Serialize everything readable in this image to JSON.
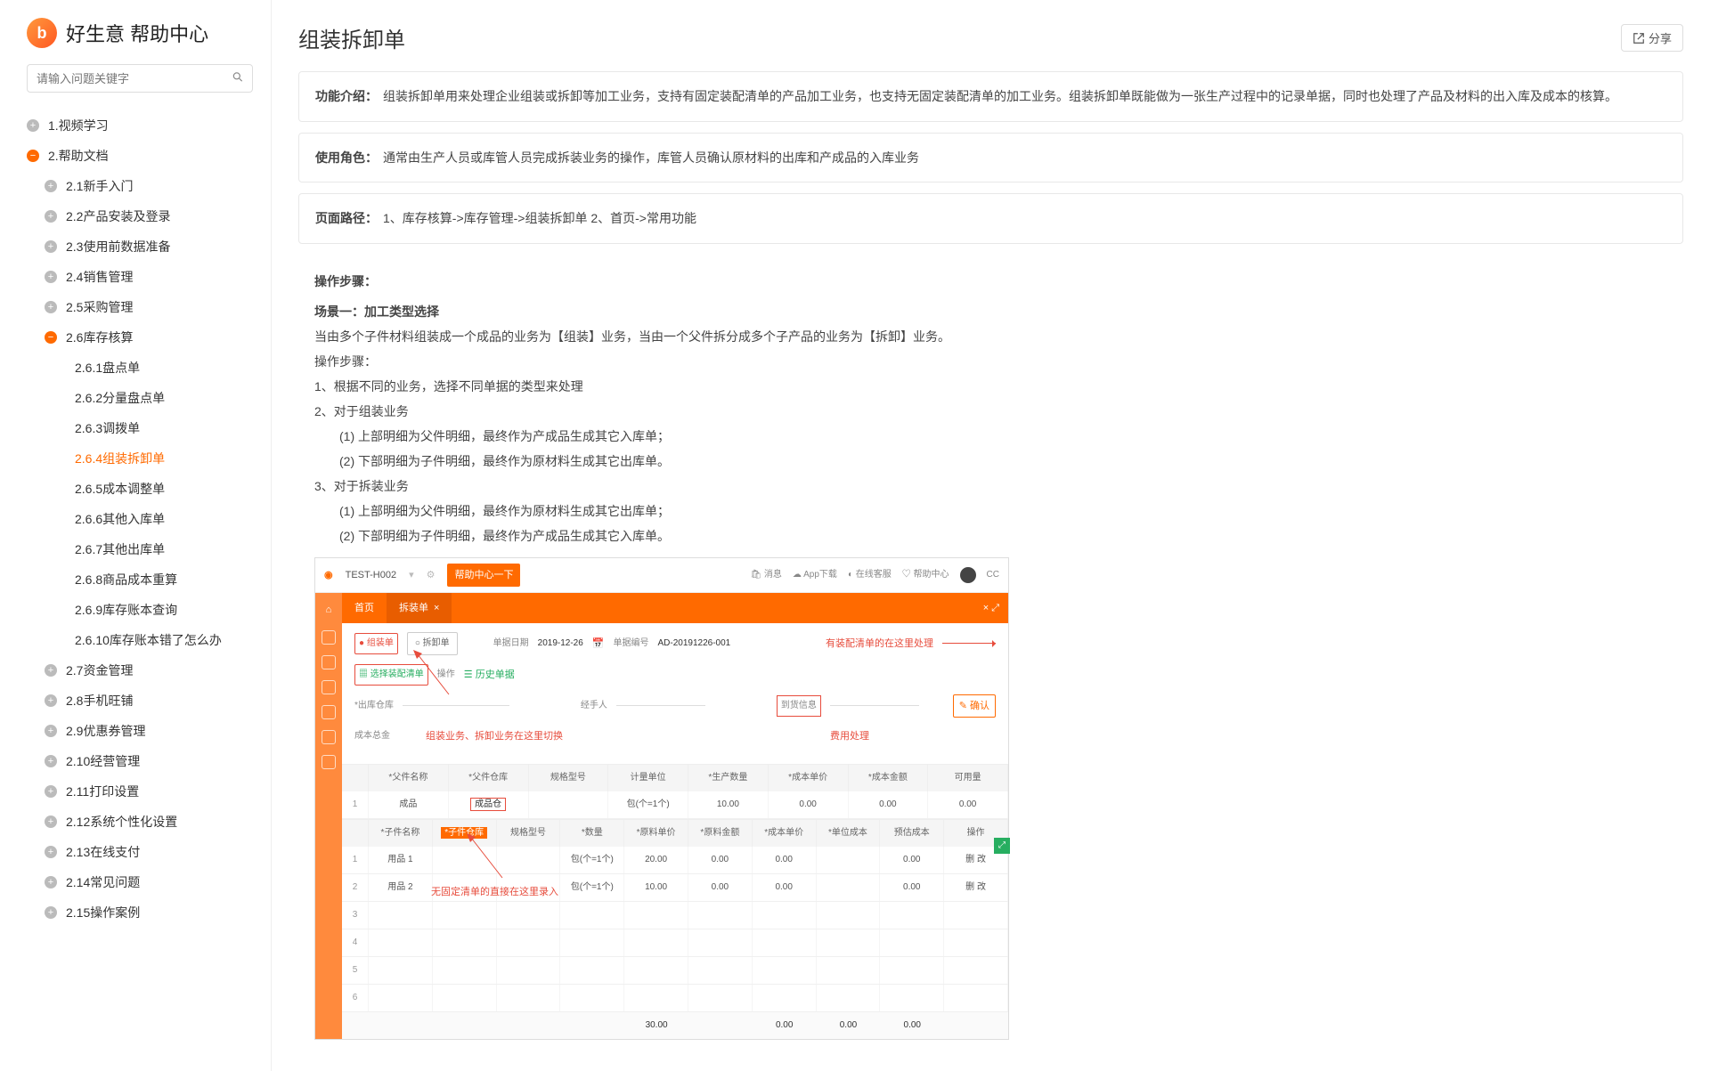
{
  "logo_text": "好生意 帮助中心",
  "logo_glyph": "b",
  "search": {
    "placeholder": "请输入问题关键字"
  },
  "share_label": "分享",
  "nav": [
    {
      "label": "1.视频学习",
      "expanded": false,
      "level": 0
    },
    {
      "label": "2.帮助文档",
      "expanded": true,
      "level": 0
    },
    {
      "label": "2.1新手入门",
      "expanded": false,
      "level": 1
    },
    {
      "label": "2.2产品安装及登录",
      "expanded": false,
      "level": 1
    },
    {
      "label": "2.3使用前数据准备",
      "expanded": false,
      "level": 1
    },
    {
      "label": "2.4销售管理",
      "expanded": false,
      "level": 1
    },
    {
      "label": "2.5采购管理",
      "expanded": false,
      "level": 1
    },
    {
      "label": "2.6库存核算",
      "expanded": true,
      "level": 1
    },
    {
      "label": "2.6.1盘点单",
      "level": 2
    },
    {
      "label": "2.6.2分量盘点单",
      "level": 2
    },
    {
      "label": "2.6.3调拨单",
      "level": 2
    },
    {
      "label": "2.6.4组装拆卸单",
      "level": 2,
      "active": true
    },
    {
      "label": "2.6.5成本调整单",
      "level": 2
    },
    {
      "label": "2.6.6其他入库单",
      "level": 2
    },
    {
      "label": "2.6.7其他出库单",
      "level": 2
    },
    {
      "label": "2.6.8商品成本重算",
      "level": 2
    },
    {
      "label": "2.6.9库存账本查询",
      "level": 2
    },
    {
      "label": "2.6.10库存账本错了怎么办",
      "level": 2
    },
    {
      "label": "2.7资金管理",
      "expanded": false,
      "level": 1
    },
    {
      "label": "2.8手机旺铺",
      "expanded": false,
      "level": 1
    },
    {
      "label": "2.9优惠券管理",
      "expanded": false,
      "level": 1
    },
    {
      "label": "2.10经营管理",
      "expanded": false,
      "level": 1
    },
    {
      "label": "2.11打印设置",
      "expanded": false,
      "level": 1
    },
    {
      "label": "2.12系统个性化设置",
      "expanded": false,
      "level": 1
    },
    {
      "label": "2.13在线支付",
      "expanded": false,
      "level": 1
    },
    {
      "label": "2.14常见问题",
      "expanded": false,
      "level": 1
    },
    {
      "label": "2.15操作案例",
      "expanded": false,
      "level": 1
    }
  ],
  "page_title": "组装拆卸单",
  "cards": {
    "intro_label": "功能介绍：",
    "intro_text": "组装拆卸单用来处理企业组装或拆卸等加工业务，支持有固定装配清单的产品加工业务，也支持无固定装配清单的加工业务。组装拆卸单既能做为一张生产过程中的记录单据，同时也处理了产品及材料的出入库及成本的核算。",
    "role_label": "使用角色：",
    "role_text": "通常由生产人员或库管人员完成拆装业务的操作，库管人员确认原材料的出库和产成品的入库业务",
    "path_label": "页面路径：",
    "path_text": "1、库存核算->库存管理->组装拆卸单 2、首页->常用功能"
  },
  "steps": {
    "heading": "操作步骤：",
    "scene_title": "场景一：加工类型选择",
    "scene_desc": "当由多个子件材料组装成一个成品的业务为【组装】业务，当由一个父件拆分成多个子产品的业务为【拆卸】业务。",
    "ops_label": "操作步骤：",
    "s1": "1、根据不同的业务，选择不同单据的类型来处理",
    "s2": "2、对于组装业务",
    "s2a": "(1) 上部明细为父件明细，最终作为产成品生成其它入库单；",
    "s2b": "(2) 下部明细为子件明细，最终作为原材料生成其它出库单。",
    "s3": "3、对于拆装业务",
    "s3a": "(1) 上部明细为父件明细，最终作为原材料生成其它出库单；",
    "s3b": "(2) 下部明细为子件明细，最终作为产成品生成其它入库单。"
  },
  "embed": {
    "top_code": "TEST-H002",
    "top_btn": "帮助中心一下",
    "top_links": [
      "消息",
      "App下载",
      "在线客服",
      "帮助中心",
      "CC"
    ],
    "tab_home": "首页",
    "tab_active": "拆装单",
    "radio_on": "组装单",
    "radio_off": "拆卸单",
    "date_label": "单据日期",
    "date_val": "2019-12-26",
    "code_label": "单据编号",
    "code_val": "AD-20191226-001",
    "annot_top": "有装配清单的在这里处理",
    "green_btn": "选择装配清单",
    "op_label": "操作",
    "history": "历史单据",
    "wh_label": "*出库仓库",
    "person_label": "经手人",
    "vendor_label": "到货信息",
    "confirm": "确认",
    "cost_total_label": "成本总金",
    "annot_mid": "组装业务、拆卸业务在这里切换",
    "annot_right": "费用处理",
    "hdr1": [
      "",
      "*父件名称",
      "*父件仓库",
      "规格型号",
      "计量单位",
      "*生产数量",
      "*成本单价",
      "*成本金额",
      "可用量"
    ],
    "row1": [
      "1",
      "成品",
      "成品仓",
      "",
      "包(个=1个)",
      "10.00",
      "0.00",
      "0.00",
      "0.00"
    ],
    "hdr2": [
      "",
      "*子件名称",
      "*子件仓库",
      "规格型号",
      "*数量",
      "*原料单价",
      "*原料金额",
      "*成本单价",
      "*单位成本",
      "预估成本",
      "操作"
    ],
    "row2a": [
      "1",
      "用品 1",
      "",
      "",
      "包(个=1个)",
      "20.00",
      "0.00",
      "0.00",
      "",
      "0.00",
      "删 改"
    ],
    "row2b": [
      "2",
      "用品 2",
      "",
      "",
      "包(个=1个)",
      "10.00",
      "0.00",
      "0.00",
      "",
      "0.00",
      "删 改"
    ],
    "annot_bottom": "无固定清单的直接在这里录入",
    "footer_vals": [
      "",
      "",
      "",
      "",
      "",
      "30.00",
      "",
      "0.00",
      "0.00",
      "0.00",
      ""
    ]
  },
  "colors": {
    "accent": "#ff6a00",
    "annot": "#e74c3c",
    "green": "#27ae60"
  }
}
